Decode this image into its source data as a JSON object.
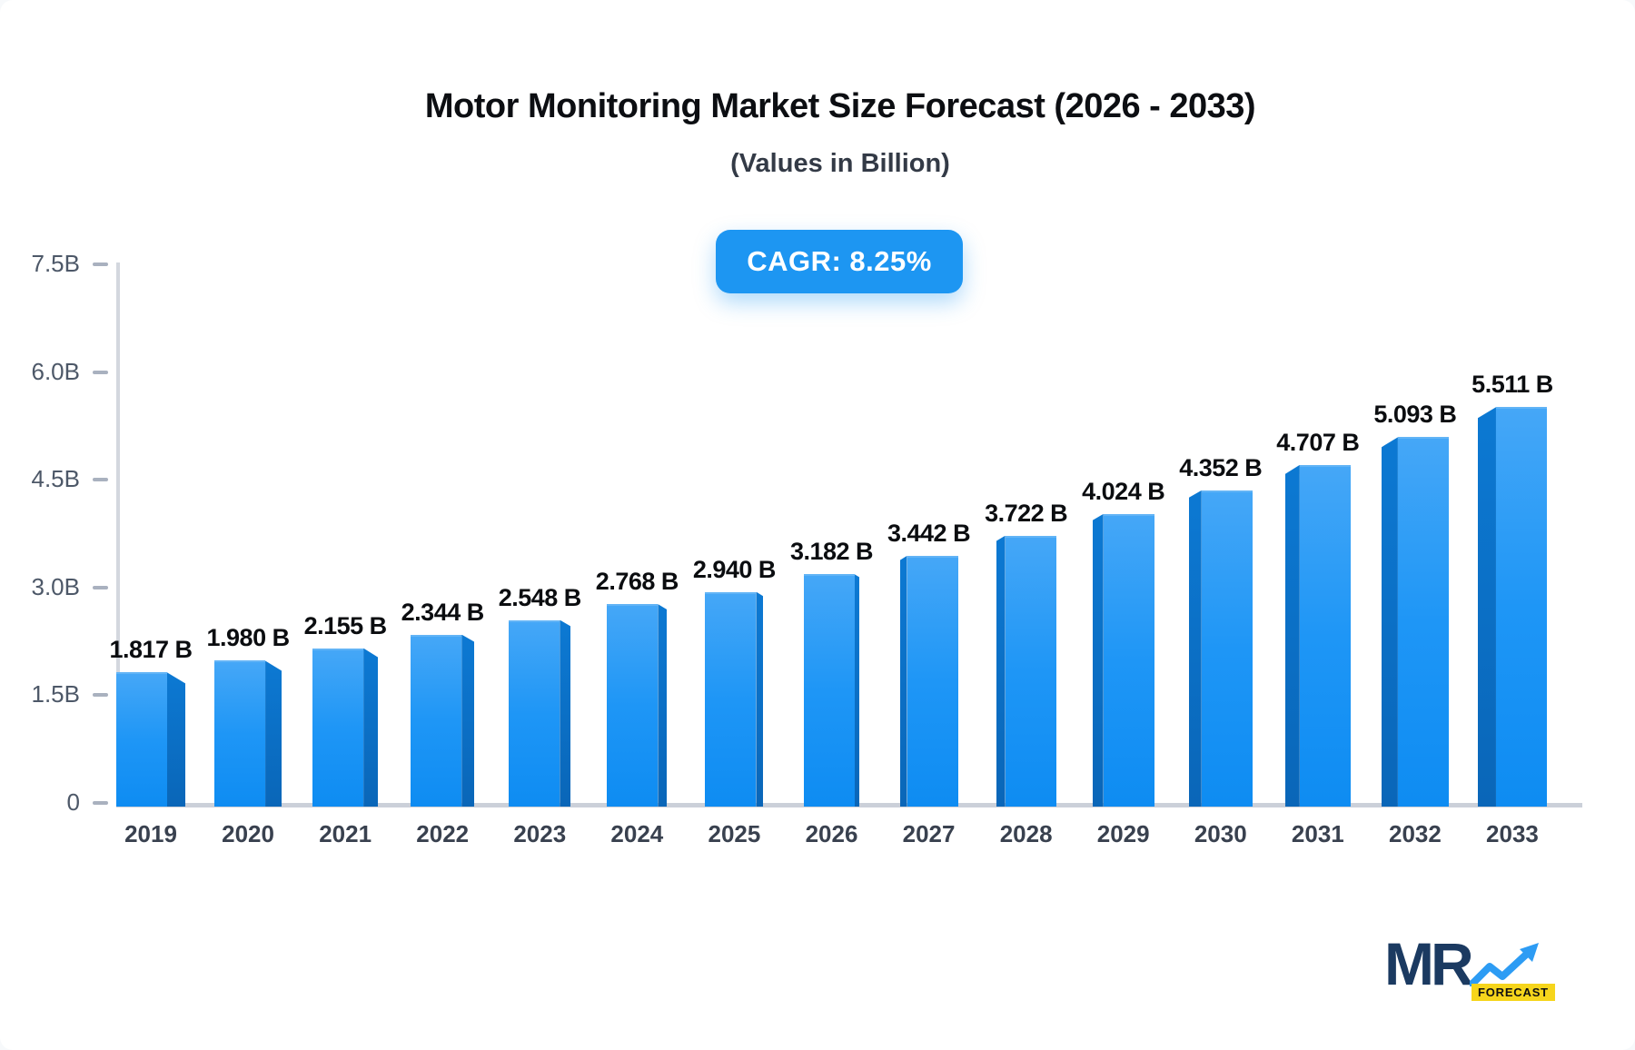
{
  "title": "Motor Monitoring Market Size Forecast (2026 - 2033)",
  "subtitle": "(Values in Billion)",
  "cagr_badge": "CAGR: 8.25%",
  "logo": {
    "text": "MR",
    "sub": "FORECAST"
  },
  "colors": {
    "badge_blue": "#1d96f2",
    "bar_front_top": "#45a7f7",
    "bar_front_bottom": "#0e8cf2",
    "bar_side": "#0a6fc8",
    "axis_gray": "#cbd0d9",
    "logo_navy": "#1b3a61",
    "logo_yellow": "#f6d51c"
  },
  "chart_data": {
    "type": "bar",
    "title": "Motor Monitoring Market Size Forecast (2026 - 2033)",
    "subtitle": "(Values in Billion)",
    "cagr_percent": 8.25,
    "categories": [
      "2019",
      "2020",
      "2021",
      "2022",
      "2023",
      "2024",
      "2025",
      "2026",
      "2027",
      "2028",
      "2029",
      "2030",
      "2031",
      "2032",
      "2033"
    ],
    "values": [
      1.817,
      1.98,
      2.155,
      2.344,
      2.548,
      2.768,
      2.94,
      3.182,
      3.442,
      3.722,
      4.024,
      4.352,
      4.707,
      5.093,
      5.511
    ],
    "bar_labels": [
      "1.817 B",
      "1.980 B",
      "2.155 B",
      "2.344 B",
      "2.548 B",
      "2.768 B",
      "2.940 B",
      "3.182 B",
      "3.442 B",
      "3.722 B",
      "4.024 B",
      "4.352 B",
      "4.707 B",
      "5.093 B",
      "5.511 B"
    ],
    "unit": "Billion",
    "xlabel": "",
    "ylabel": "",
    "ylim": [
      0,
      7.5
    ],
    "y_ticks": [
      {
        "label": "0",
        "value": 0
      },
      {
        "label": "1.5B",
        "value": 1.5
      },
      {
        "label": "3.0B",
        "value": 3.0
      },
      {
        "label": "4.5B",
        "value": 4.5
      },
      {
        "label": "6.0B",
        "value": 6.0
      },
      {
        "label": "7.5B",
        "value": 7.5
      }
    ],
    "grid": false,
    "legend": "none",
    "style_3d": true
  }
}
